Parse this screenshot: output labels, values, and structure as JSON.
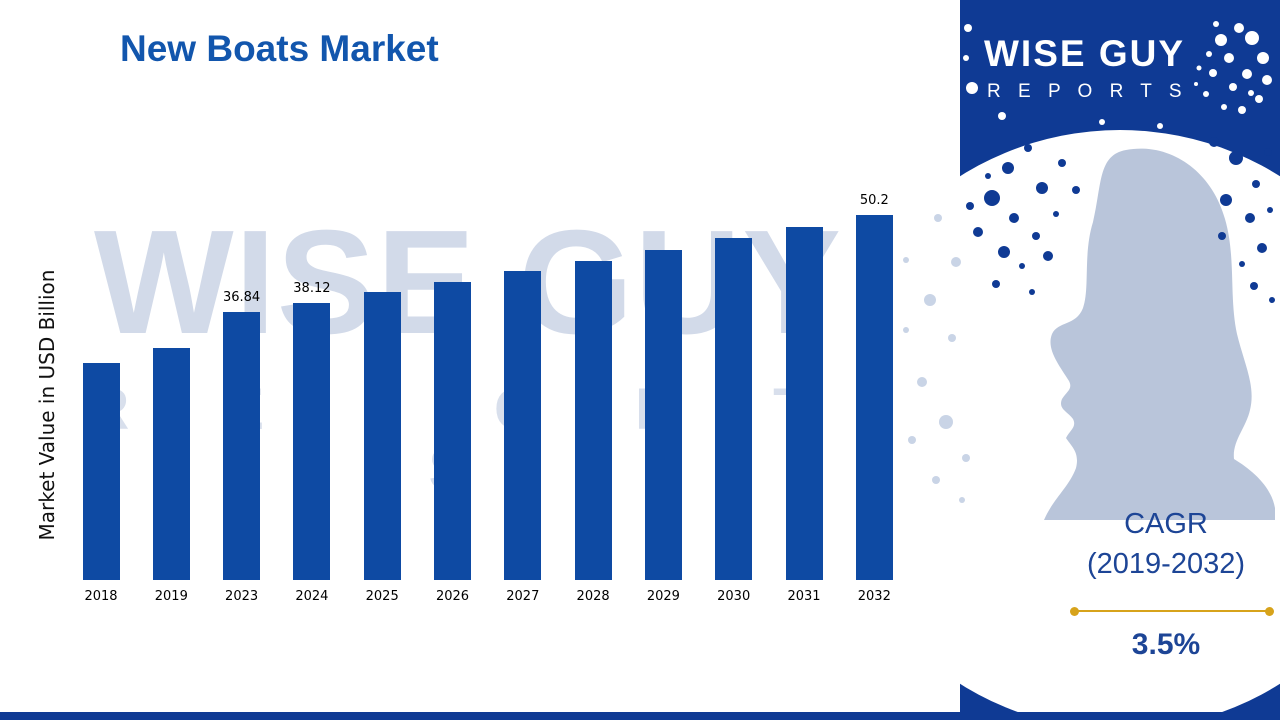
{
  "title": "New Boats Market",
  "colors": {
    "panel_navy": "#0f3a94",
    "bar_blue": "#0e4aa3",
    "title_blue": "#1256ad",
    "cagr_blue": "#1d4596",
    "gold": "#d7a31b",
    "watermark": "#d2dae9",
    "face_blue": "#b9c5da"
  },
  "branding": {
    "logo_line1": "WISE GUY",
    "logo_line2": "R E P O R T S",
    "logo_face_icon": "dotted-head-profile-icon",
    "panel_graphic": "head-profile-silhouette"
  },
  "watermark": {
    "line1": "WISE GUY",
    "line2": "R E P O R T S"
  },
  "cagr": {
    "title": "CAGR",
    "range": "(2019-2032)",
    "value": "3.5%"
  },
  "chart_data": {
    "type": "bar",
    "title": "New Boats Market",
    "xlabel": "",
    "ylabel": "Market Value in USD Billion",
    "categories": [
      "2018",
      "2019",
      "2023",
      "2024",
      "2025",
      "2026",
      "2027",
      "2028",
      "2029",
      "2030",
      "2031",
      "2032"
    ],
    "values": [
      29.9,
      31.9,
      36.84,
      38.12,
      39.6,
      41.0,
      42.5,
      43.9,
      45.4,
      47.0,
      48.6,
      50.2
    ],
    "value_labels": [
      "",
      "",
      "36.84",
      "38.12",
      "",
      "",
      "",
      "",
      "",
      "",
      "",
      "50.2"
    ],
    "bar_color": "#0e4aa3",
    "ylim": [
      0,
      55
    ],
    "grid": false,
    "legend": false
  }
}
